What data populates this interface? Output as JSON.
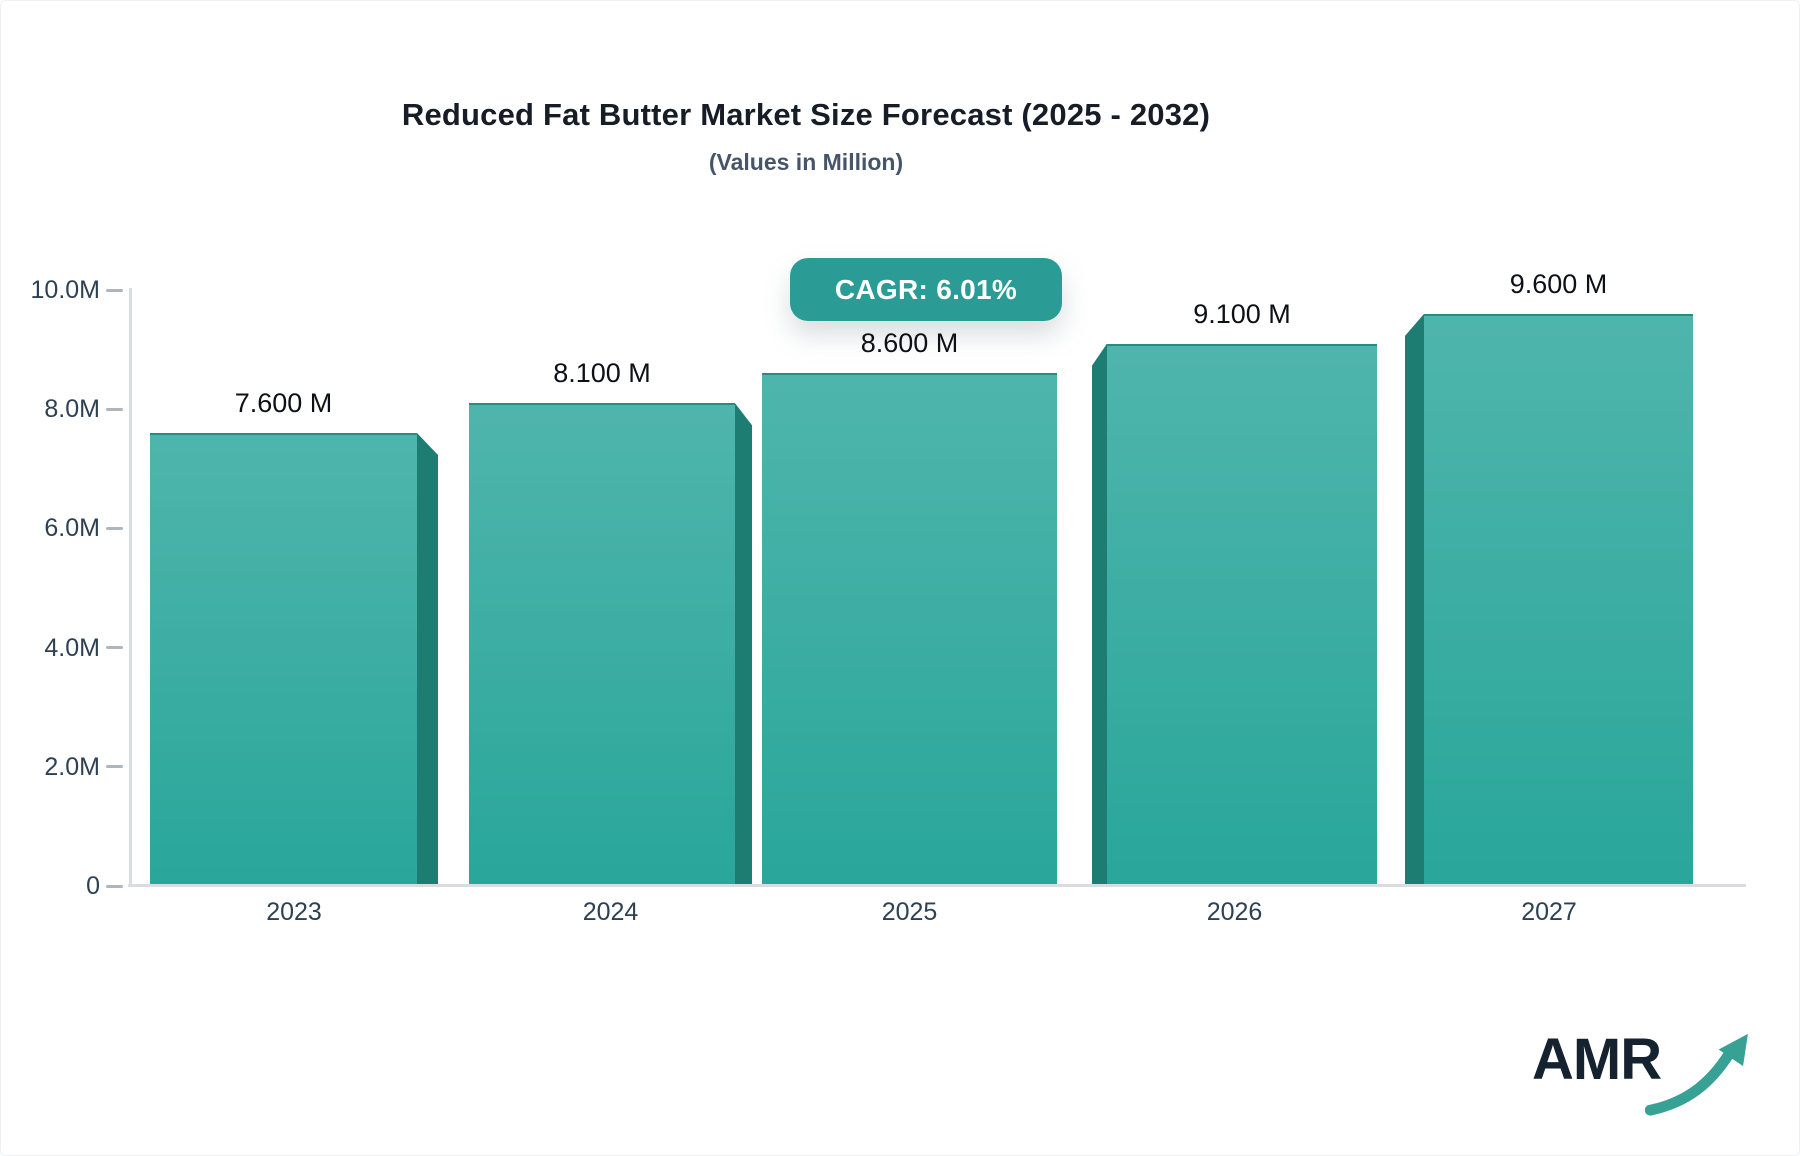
{
  "chart_data": {
    "type": "bar",
    "title": "Reduced Fat Butter Market Size Forecast (2025 - 2032)",
    "subtitle": "(Values in Million)",
    "categories": [
      "2023",
      "2024",
      "2025",
      "2026",
      "2027"
    ],
    "values": [
      7.6,
      8.1,
      8.6,
      9.1,
      9.6
    ],
    "bar_labels": [
      "7.600 M",
      "8.100 M",
      "8.600 M",
      "9.100 M",
      "9.600 M"
    ],
    "y_ticks": [
      "10.0M",
      "8.0M",
      "6.0M",
      "4.0M",
      "2.0M",
      "0"
    ],
    "ylim": [
      0,
      10
    ],
    "xlabel": "",
    "ylabel": "",
    "grid": "off",
    "legend": "none",
    "annotation": "CAGR: 6.01%",
    "bar_3d_sides": [
      "right",
      "right",
      "none",
      "left",
      "left"
    ]
  },
  "badge": {
    "label": "CAGR: 6.01%"
  },
  "logo": {
    "text": "AMR",
    "icon": "growth-arrow-icon"
  },
  "colors": {
    "bar_top": "#4fb5ac",
    "bar_bottom": "#29a69a",
    "bar_side": "#1e7d72",
    "badge_bg": "#2a9c95",
    "badge_text": "#ffffff",
    "title_text": "#161d27",
    "subtitle_text": "#46566a",
    "axis_text": "#2e4154",
    "axis_line": "#d9dde1",
    "tick_dash": "#aeb6bd",
    "logo_text": "#152230",
    "logo_arrow": "#38a195"
  }
}
